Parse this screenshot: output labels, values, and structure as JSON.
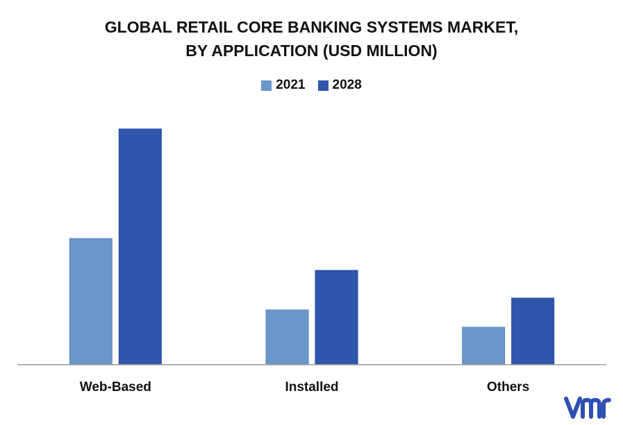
{
  "chart_data": {
    "type": "bar",
    "title_lines": [
      "GLOBAL RETAIL CORE BANKING SYSTEMS MARKET,",
      "BY APPLICATION (USD MILLION)"
    ],
    "categories": [
      "Web-Based",
      "Installed",
      "Others"
    ],
    "series": [
      {
        "name": "2021",
        "values": [
          182,
          79,
          54
        ],
        "color": "#6a96c9"
      },
      {
        "name": "2028",
        "values": [
          340,
          136,
          96
        ],
        "color": "#2f56ad"
      }
    ],
    "ylim": [
      0,
      360
    ],
    "grid": false,
    "legend_position": "top-center"
  },
  "branding": {
    "logo_icon": "vmr-logo-icon",
    "logo_color": "#2f4fb3"
  }
}
